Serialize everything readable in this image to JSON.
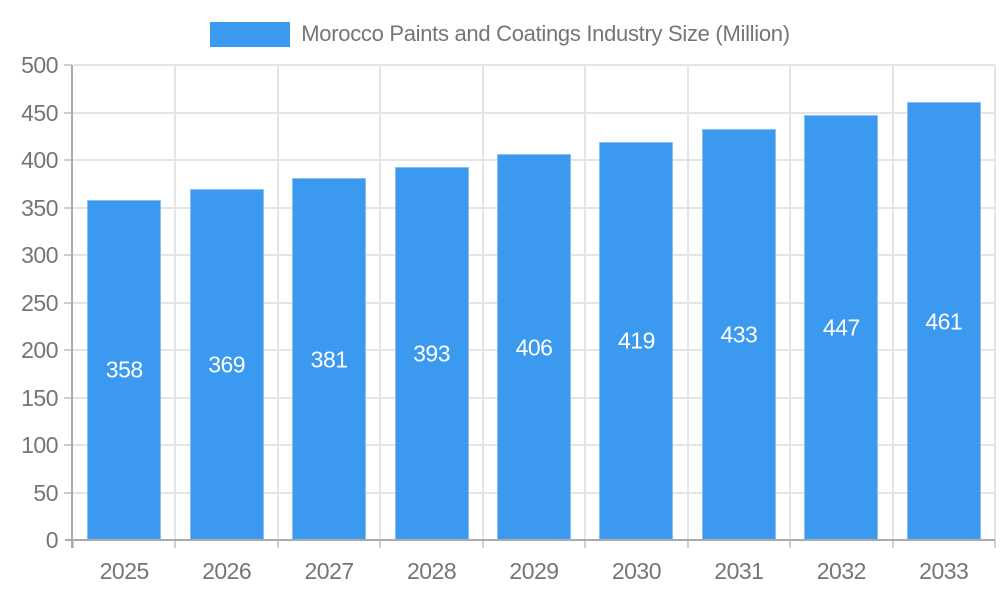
{
  "legend": {
    "label": "Morocco Paints and Coatings Industry Size (Million)"
  },
  "chart_data": {
    "type": "bar",
    "title": "Morocco Paints and Coatings Industry Size (Million)",
    "categories": [
      "2025",
      "2026",
      "2027",
      "2028",
      "2029",
      "2030",
      "2031",
      "2032",
      "2033"
    ],
    "values": [
      358,
      369,
      381,
      393,
      406,
      419,
      433,
      447,
      461
    ],
    "xlabel": "",
    "ylabel": "",
    "ylim": [
      0,
      500
    ],
    "ytick_step": 50,
    "grid": true,
    "legend_position": "top",
    "value_labels": "inside-center"
  },
  "colors": {
    "bar": "#3B9AF0",
    "bar_border": "#86C0F7",
    "grid": "#e5e5e5",
    "axis": "#ababab",
    "tick": "#cfcfcf",
    "text": "#757575",
    "bar_label": "#ffffff",
    "background": "#ffffff"
  }
}
